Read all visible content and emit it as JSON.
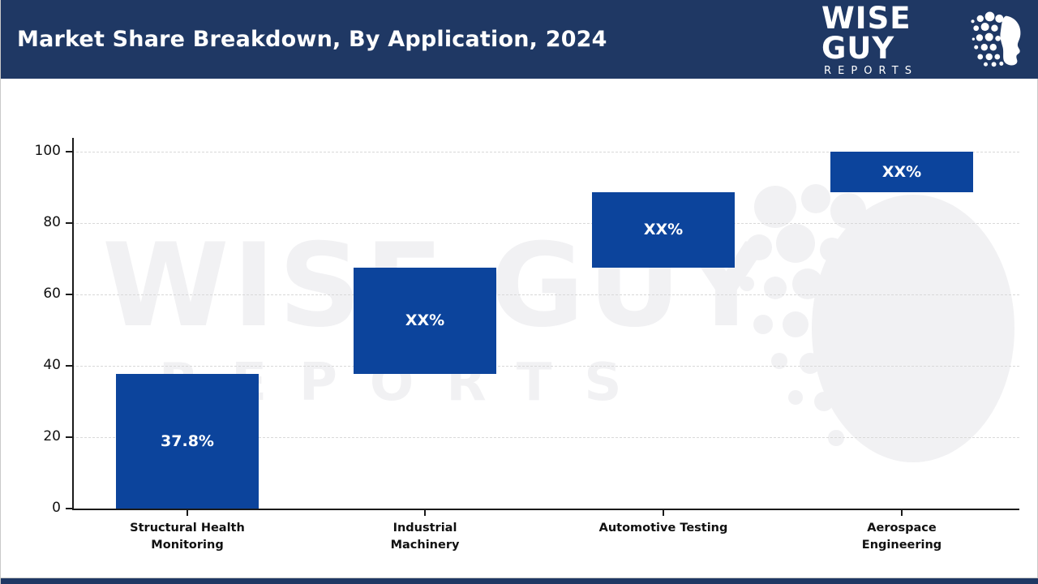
{
  "header": {
    "title": "Market Share Breakdown, By Application, 2024",
    "bg_color": "#1f3864",
    "logo": {
      "line1": "WISE GUY",
      "line2": "REPORTS"
    }
  },
  "watermark": {
    "line1": "WISE GUY",
    "line2": "REPORTS"
  },
  "footer": {
    "bg_color": "#1f3864"
  },
  "chart_data": {
    "type": "bar",
    "subtype": "waterfall",
    "title": "Market Share Breakdown, By Application, 2024",
    "categories": [
      "Structural Health Monitoring",
      "Industrial Machinery",
      "Automotive Testing",
      "Aerospace Engineering"
    ],
    "category_lines": [
      [
        "Structural Health",
        "Monitoring"
      ],
      [
        "Industrial",
        "Machinery"
      ],
      [
        "Automotive Testing"
      ],
      [
        "Aerospace",
        "Engineering"
      ]
    ],
    "segments": [
      {
        "start": 0,
        "end": 37.8,
        "value": 37.8,
        "label": "37.8%"
      },
      {
        "start": 37.8,
        "end": 67.6,
        "value": 29.8,
        "label": "XX%"
      },
      {
        "start": 67.6,
        "end": 88.6,
        "value": 21.0,
        "label": "XX%"
      },
      {
        "start": 88.6,
        "end": 100,
        "value": 11.4,
        "label": "XX%"
      }
    ],
    "xlabel": "",
    "ylabel": "",
    "yticks": [
      0,
      20,
      40,
      60,
      80,
      100
    ],
    "ylim": [
      0,
      100
    ],
    "grid": "horizontal-dashed",
    "legend": "none",
    "bar_color": "#0c449c",
    "bar_label_color": "#ffffff",
    "axis_color": "#1a1a1a",
    "gridline_color": "#d9d9d9"
  }
}
